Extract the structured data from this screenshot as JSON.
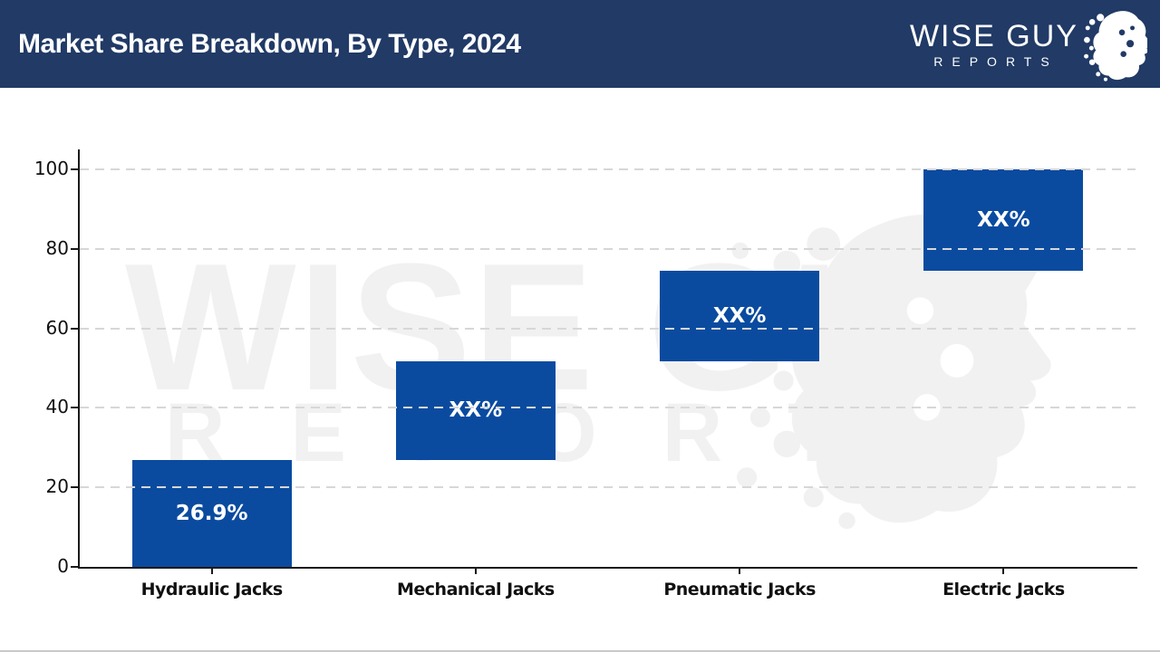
{
  "header": {
    "title": "Market Share Breakdown, By Type, 2024",
    "logo": {
      "line1": "WISE GUY",
      "line2": "REPORTS"
    }
  },
  "watermark": {
    "line1": "WISE GUY",
    "line2": "REPORTS"
  },
  "chart_data": {
    "type": "bar",
    "subtype": "floating-segment-waterfall",
    "title": "Market Share Breakdown, By Type, 2024",
    "categories": [
      "Hydraulic Jacks",
      "Mechanical Jacks",
      "Pneumatic Jacks",
      "Electric Jacks"
    ],
    "segments": [
      {
        "category": "Hydraulic Jacks",
        "start": 0,
        "end": 26.9,
        "label": "26.9%"
      },
      {
        "category": "Mechanical Jacks",
        "start": 26.9,
        "end": 51.8,
        "label": "XX%"
      },
      {
        "category": "Pneumatic Jacks",
        "start": 51.8,
        "end": 74.5,
        "label": "XX%"
      },
      {
        "category": "Electric Jacks",
        "start": 74.5,
        "end": 100,
        "label": "XX%"
      }
    ],
    "ylim": [
      0,
      100
    ],
    "yticks": [
      0,
      20,
      40,
      60,
      80,
      100
    ],
    "grid": "horizontal-dashed",
    "legend": "none",
    "xlabel": "",
    "ylabel": "",
    "bar_color": "#0a4ba0",
    "bar_label_color": "#ffffff"
  },
  "colors": {
    "header_bg": "#213a66",
    "bar": "#0a4ba0",
    "grid": "#d7d7d7",
    "axis": "#1a1a1a",
    "watermark": "#f1f1f1"
  }
}
